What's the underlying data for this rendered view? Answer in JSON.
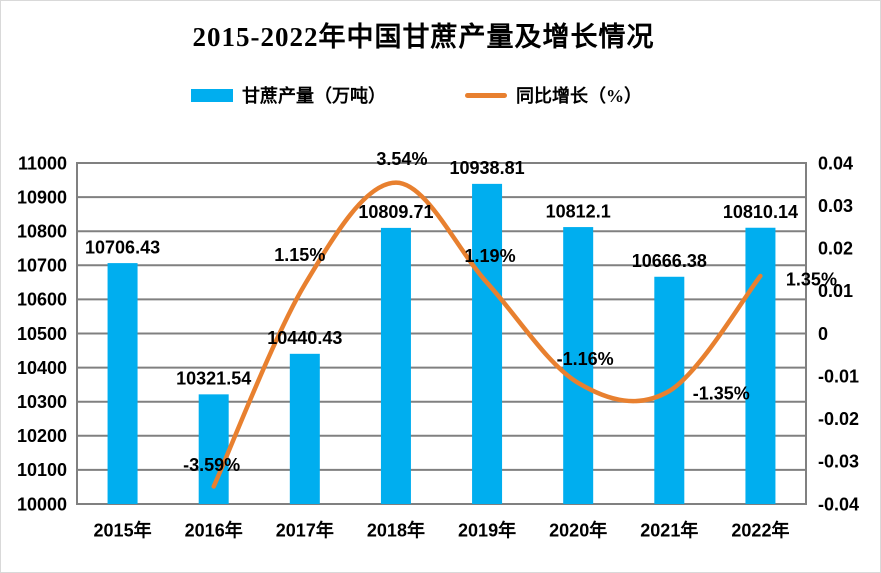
{
  "title": "2015-2022年中国甘蔗产量及增长情况",
  "frame": {
    "background": "#ffffff",
    "border_color": "#d9d9d9"
  },
  "colors": {
    "bar": "#00AEEF",
    "line": "#E8802F",
    "grid": "#808080",
    "text": "#000000"
  },
  "chart_data": {
    "type": "bar",
    "subtype": "combo-bar-line",
    "title": "2015-2022年中国甘蔗产量及增长情况",
    "categories": [
      "2015年",
      "2016年",
      "2017年",
      "2018年",
      "2019年",
      "2020年",
      "2021年",
      "2022年"
    ],
    "grid": true,
    "legend_position": "top",
    "series": [
      {
        "name": "甘蔗产量（万吨）",
        "type": "bar",
        "axis": "left",
        "color": "#00AEEF",
        "values": [
          10706.43,
          10321.54,
          10440.43,
          10809.71,
          10938.81,
          10812.1,
          10666.38,
          10810.14
        ],
        "value_labels": [
          "10706.43",
          "10321.54",
          "10440.43",
          "10809.71",
          "10938.81",
          "10812.1",
          "10666.38",
          "10810.14"
        ]
      },
      {
        "name": "同比增长（%）",
        "type": "line",
        "axis": "right",
        "color": "#E8802F",
        "values_percent": [
          null,
          -3.59,
          1.15,
          3.54,
          1.19,
          -1.16,
          -1.35,
          1.35
        ],
        "value_labels": [
          "",
          "-3.59%",
          "1.15%",
          "3.54%",
          "1.19%",
          "-1.16%",
          "-1.35%",
          "1.35%"
        ]
      }
    ],
    "left_axis": {
      "min": 10000,
      "max": 11000,
      "step": 100,
      "tick_labels": [
        "11000",
        "10900",
        "10800",
        "10700",
        "10600",
        "10500",
        "10400",
        "10300",
        "10200",
        "10100",
        "10000"
      ]
    },
    "right_axis": {
      "min": -0.04,
      "max": 0.04,
      "step": 0.01,
      "tick_labels": [
        "0.04",
        "0.03",
        "0.02",
        "0.01",
        "0",
        "-0.01",
        "-0.02",
        "-0.03",
        "-0.04"
      ]
    }
  }
}
